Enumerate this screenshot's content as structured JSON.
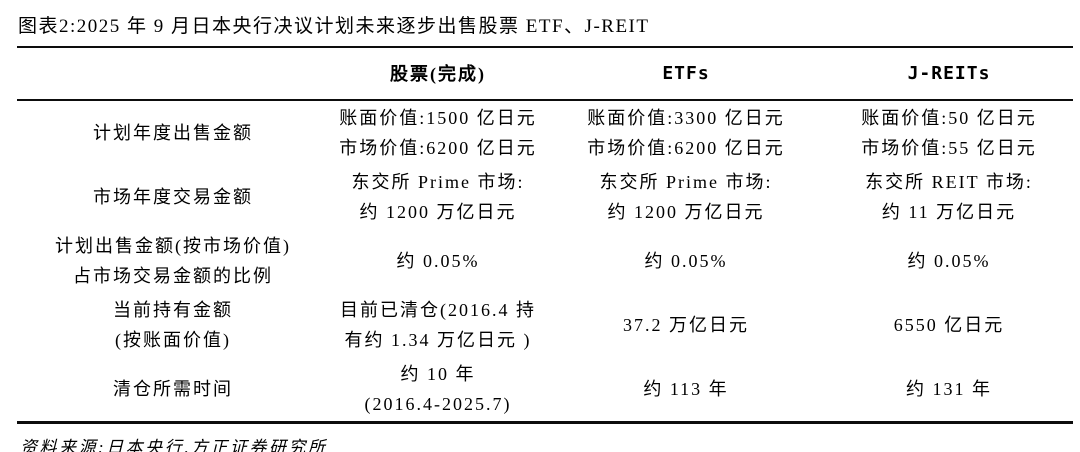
{
  "title": "图表2:2025 年 9 月日本央行决议计划未来逐步出售股票 ETF、J-REIT",
  "footer": "资料来源:日本央行,方正证券研究所",
  "table": {
    "columns": [
      "",
      "股票(完成)",
      "ETFs",
      "J-REITs"
    ],
    "rows": [
      {
        "label": [
          "计划年度出售金额"
        ],
        "cells": [
          [
            "账面价值:1500 亿日元",
            "市场价值:6200 亿日元"
          ],
          [
            "账面价值:3300 亿日元",
            "市场价值:6200 亿日元"
          ],
          [
            "账面价值:50 亿日元",
            "市场价值:55 亿日元"
          ]
        ]
      },
      {
        "label": [
          "市场年度交易金额"
        ],
        "cells": [
          [
            "东交所 Prime 市场:",
            "约 1200 万亿日元"
          ],
          [
            "东交所 Prime 市场:",
            "约 1200 万亿日元"
          ],
          [
            "东交所 REIT 市场:",
            "约 11 万亿日元"
          ]
        ]
      },
      {
        "label": [
          "计划出售金额(按市场价值)",
          "占市场交易金额的比例"
        ],
        "cells": [
          [
            "约 0.05%"
          ],
          [
            "约 0.05%"
          ],
          [
            "约 0.05%"
          ]
        ]
      },
      {
        "label": [
          "当前持有金额",
          "(按账面价值)"
        ],
        "cells": [
          [
            "目前已清仓(2016.4 持",
            "有约 1.34 万亿日元 )"
          ],
          [
            "37.2 万亿日元"
          ],
          [
            "6550 亿日元"
          ]
        ]
      },
      {
        "label": [
          "清仓所需时间"
        ],
        "cells": [
          [
            "约 10 年",
            "(2016.4-2025.7)"
          ],
          [
            "约 113 年"
          ],
          [
            "约 131 年"
          ]
        ]
      }
    ]
  }
}
